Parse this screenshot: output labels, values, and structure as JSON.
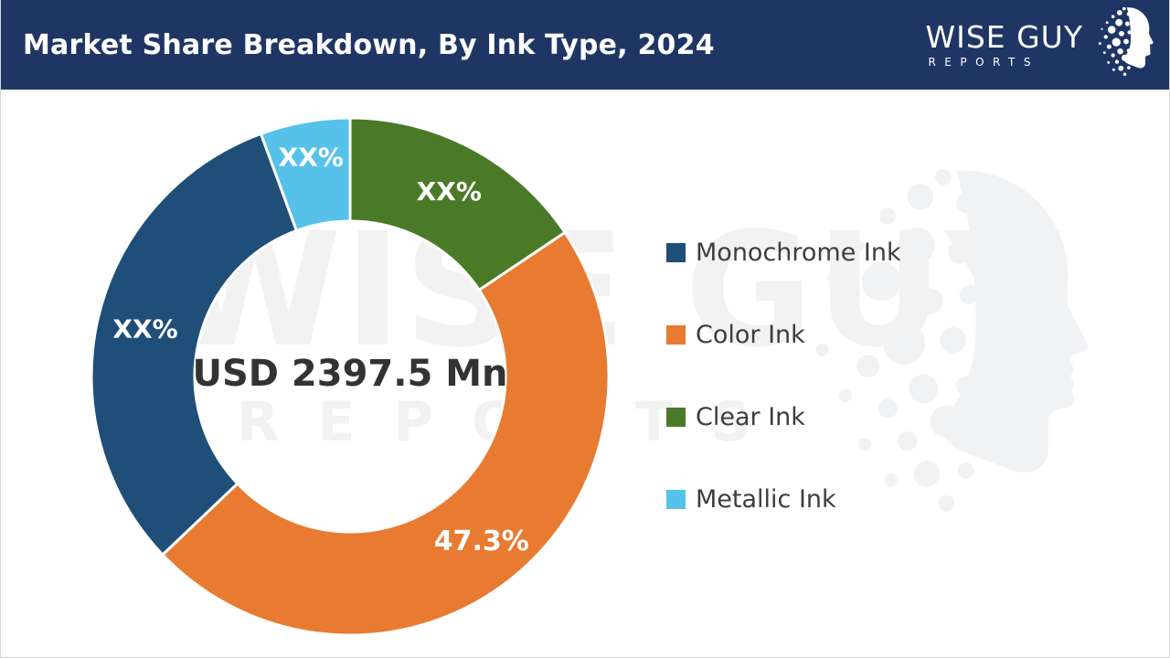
{
  "header": {
    "title": "Market Share Breakdown, By Ink Type, 2024",
    "background_color": "#1f3665",
    "logo": {
      "line1": "WISE GUY",
      "line2": "REPORTS"
    }
  },
  "watermark": {
    "line1": "WISE GUY",
    "line2": "REPORTS"
  },
  "chart_data": {
    "type": "pie",
    "donut": true,
    "title": "Market Share Breakdown, By Ink Type, 2024",
    "center_label": "USD 2397.5 Mn",
    "start_angle_deg": 0,
    "direction": "clockwise",
    "legend_position": "right",
    "slices": [
      {
        "name": "Clear Ink",
        "label": "XX%",
        "share_pct_of_circle": 15.6,
        "color": "#4a7a28",
        "label_color": "#ffffff"
      },
      {
        "name": "Color Ink",
        "label": "47.3%",
        "value_pct": 47.3,
        "share_pct_of_circle": 47.3,
        "color": "#e87b31",
        "label_color": "#ffffff"
      },
      {
        "name": "Monochrome Ink",
        "label": "XX%",
        "share_pct_of_circle": 31.5,
        "color": "#1f4e79",
        "label_color": "#ffffff"
      },
      {
        "name": "Metallic Ink",
        "label": "XX%",
        "share_pct_of_circle": 5.6,
        "color": "#56c2e9",
        "label_color": "#ffffff"
      }
    ]
  },
  "legend": {
    "items": [
      {
        "label": "Monochrome Ink",
        "color": "#1f4e79"
      },
      {
        "label": "Color Ink",
        "color": "#e87b31"
      },
      {
        "label": "Clear Ink",
        "color": "#4a7a28"
      },
      {
        "label": "Metallic Ink",
        "color": "#56c2e9"
      }
    ]
  }
}
